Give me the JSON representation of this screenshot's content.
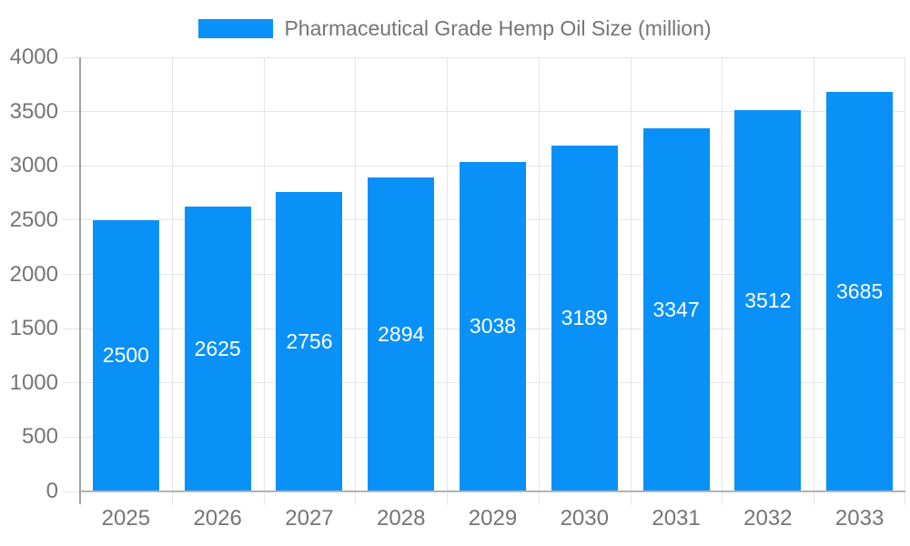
{
  "legend": {
    "label": "Pharmaceutical Grade Hemp Oil Size (million)"
  },
  "colors": {
    "background": "#ffffff",
    "bar": "#0991f8",
    "grid": "#e6e6e6",
    "axis_y": "#a0a0a0",
    "axis_x": "#b3b3b3",
    "axis_label": "#757575",
    "bar_label": "#ffffff"
  },
  "chart_data": {
    "type": "bar",
    "title": "Pharmaceutical Grade Hemp Oil Size (million)",
    "categories": [
      "2025",
      "2026",
      "2027",
      "2028",
      "2029",
      "2030",
      "2031",
      "2032",
      "2033"
    ],
    "series": [
      {
        "name": "Pharmaceutical Grade Hemp Oil Size (million)",
        "values": [
          2500,
          2625,
          2756,
          2894,
          3038,
          3189,
          3347,
          3512,
          3685
        ]
      }
    ],
    "values": [
      2500,
      2625,
      2756,
      2894,
      3038,
      3189,
      3347,
      3512,
      3685
    ],
    "bar_labels": [
      "2500",
      "2625",
      "2756",
      "2894",
      "3038",
      "3189",
      "3347",
      "3512",
      "3685"
    ],
    "xlabel": "",
    "ylabel": "",
    "ylim": [
      0,
      4000
    ],
    "yticks": [
      "0",
      "500",
      "1000",
      "1500",
      "2000",
      "2500",
      "3000",
      "3500",
      "4000"
    ],
    "grid": true,
    "legend_position": "top-center",
    "bar_label_position": "middle"
  }
}
